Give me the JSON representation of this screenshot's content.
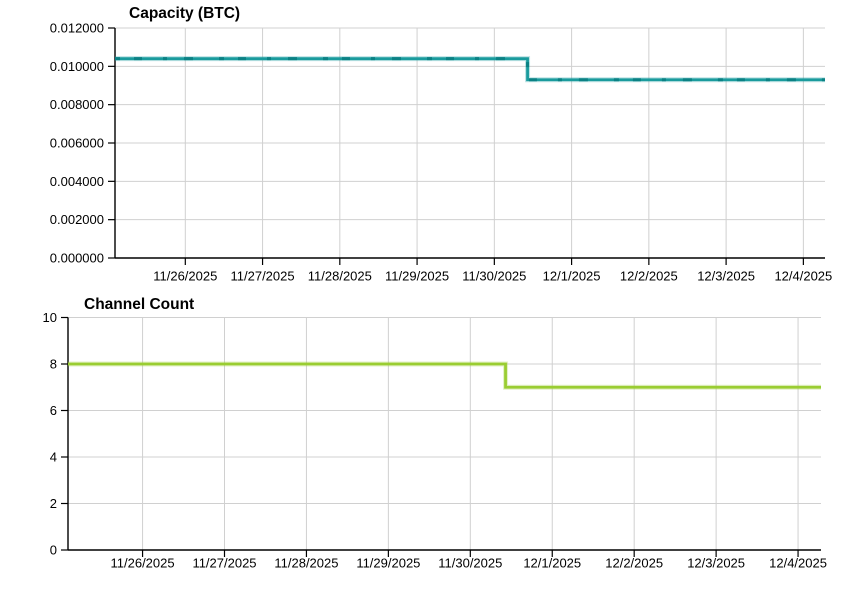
{
  "chart_data": [
    {
      "type": "line",
      "title": "Capacity (BTC)",
      "xlabel": "",
      "ylabel": "",
      "ylim": [
        0,
        0.012
      ],
      "xlim_days": [
        -0.91,
        8.28
      ],
      "grid": true,
      "grid_color": "#d0d0d0",
      "axis_color": "#000000",
      "y_ticks": [
        {
          "value": 0.0,
          "label": "0.000000"
        },
        {
          "value": 0.002,
          "label": "0.002000"
        },
        {
          "value": 0.004,
          "label": "0.004000"
        },
        {
          "value": 0.006,
          "label": "0.006000"
        },
        {
          "value": 0.008,
          "label": "0.008000"
        },
        {
          "value": 0.01,
          "label": "0.010000"
        },
        {
          "value": 0.012,
          "label": "0.012000"
        }
      ],
      "x_ticks": [
        {
          "day": 0,
          "label": "11/26/2025"
        },
        {
          "day": 1,
          "label": "11/27/2025"
        },
        {
          "day": 2,
          "label": "11/28/2025"
        },
        {
          "day": 3,
          "label": "11/29/2025"
        },
        {
          "day": 4,
          "label": "11/30/2025"
        },
        {
          "day": 5,
          "label": "12/1/2025"
        },
        {
          "day": 6,
          "label": "12/2/2025"
        },
        {
          "day": 7,
          "label": "12/3/2025"
        },
        {
          "day": 8,
          "label": "12/4/2025"
        }
      ],
      "series": [
        {
          "name": "capacity-btc",
          "color": "#1a9b9d",
          "marker_color": "#0b8184",
          "step": true,
          "points": [
            {
              "day": -0.91,
              "value": 0.0104
            },
            {
              "day": 4.43,
              "value": 0.0104
            },
            {
              "day": 4.43,
              "value": 0.0093
            },
            {
              "day": 8.28,
              "value": 0.0093
            }
          ]
        }
      ]
    },
    {
      "type": "line",
      "title": "Channel Count",
      "xlabel": "",
      "ylabel": "",
      "ylim": [
        0,
        10
      ],
      "xlim_days": [
        -0.91,
        8.28
      ],
      "grid": true,
      "grid_color": "#d0d0d0",
      "axis_color": "#000000",
      "y_ticks": [
        {
          "value": 0,
          "label": "0"
        },
        {
          "value": 2,
          "label": "2"
        },
        {
          "value": 4,
          "label": "4"
        },
        {
          "value": 6,
          "label": "6"
        },
        {
          "value": 8,
          "label": "8"
        },
        {
          "value": 10,
          "label": "10"
        }
      ],
      "x_ticks": [
        {
          "day": 0,
          "label": "11/26/2025"
        },
        {
          "day": 1,
          "label": "11/27/2025"
        },
        {
          "day": 2,
          "label": "11/28/2025"
        },
        {
          "day": 3,
          "label": "11/29/2025"
        },
        {
          "day": 4,
          "label": "11/30/2025"
        },
        {
          "day": 5,
          "label": "12/1/2025"
        },
        {
          "day": 6,
          "label": "12/2/2025"
        },
        {
          "day": 7,
          "label": "12/3/2025"
        },
        {
          "day": 8,
          "label": "12/4/2025"
        }
      ],
      "series": [
        {
          "name": "channel-count",
          "color": "#9acd32",
          "step": true,
          "points": [
            {
              "day": -0.91,
              "value": 8
            },
            {
              "day": 4.43,
              "value": 8
            },
            {
              "day": 4.43,
              "value": 7
            },
            {
              "day": 8.28,
              "value": 7
            }
          ]
        }
      ]
    }
  ]
}
